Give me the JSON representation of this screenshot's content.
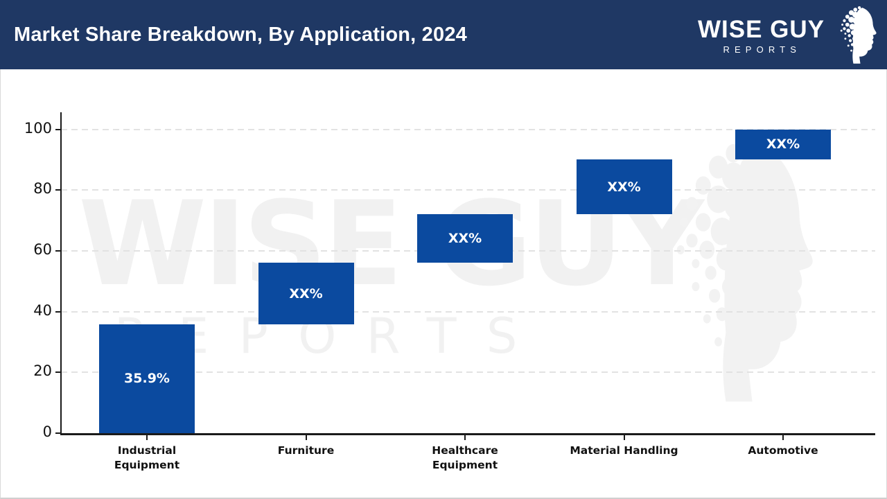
{
  "header": {
    "title": "Market Share Breakdown, By Application, 2024",
    "logo": {
      "primary": "WISE GUY",
      "secondary": "REPORTS"
    }
  },
  "watermark": {
    "line1": "WISE GUY",
    "line2": "REPORTS"
  },
  "colors": {
    "header_bg": "#1f3864",
    "bar": "#0b4a9f",
    "bar_label": "#ffffff",
    "gridline": "#e2e2e2",
    "axis": "#1a1a1a",
    "watermark": "#f1f1f1"
  },
  "chart_data": {
    "type": "bar",
    "subtype": "waterfall",
    "title": "Market Share Breakdown, By Application, 2024",
    "categories": [
      "Industrial Equipment",
      "Furniture",
      "Healthcare Equipment",
      "Material Handling",
      "Automotive"
    ],
    "tick_labels": [
      "Industrial\nEquipment",
      "Furniture",
      "Healthcare\nEquipment",
      "Material Handling",
      "Automotive"
    ],
    "segments": [
      {
        "category": "Industrial Equipment",
        "start": 0,
        "end": 35.9,
        "value": 35.9,
        "label": "35.9%"
      },
      {
        "category": "Furniture",
        "start": 35.9,
        "end": 56,
        "value": 20.1,
        "label": "XX%"
      },
      {
        "category": "Healthcare Equipment",
        "start": 56,
        "end": 72,
        "value": 16,
        "label": "XX%"
      },
      {
        "category": "Material Handling",
        "start": 72,
        "end": 90,
        "value": 18,
        "label": "XX%"
      },
      {
        "category": "Automotive",
        "start": 90,
        "end": 100,
        "value": 10,
        "label": "XX%"
      }
    ],
    "xlabel": "",
    "ylabel": "",
    "yticks": [
      0,
      20,
      40,
      60,
      80,
      100
    ],
    "ylim": [
      0,
      105
    ],
    "grid": "horizontal-dashed",
    "legend": "none"
  }
}
